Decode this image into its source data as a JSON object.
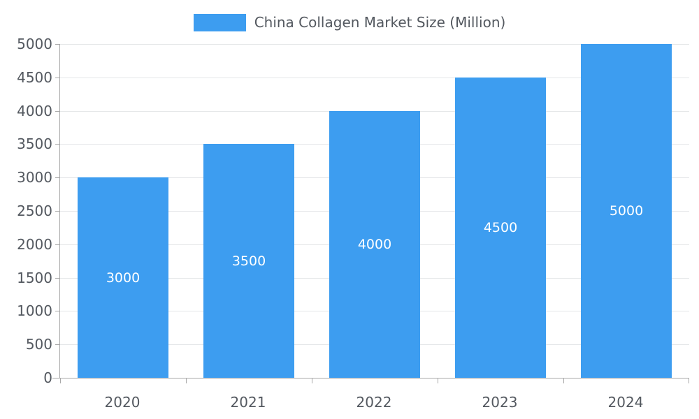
{
  "chart_data": {
    "type": "bar",
    "title": "China Collagen Market Size (Million)",
    "categories": [
      "2020",
      "2021",
      "2022",
      "2023",
      "2024"
    ],
    "values": [
      3000,
      3500,
      4000,
      4500,
      5000
    ],
    "bar_value_labels": [
      "3000",
      "3500",
      "4000",
      "4500",
      "5000"
    ],
    "xlabel": "",
    "ylabel": "",
    "ylim": [
      0,
      5000
    ],
    "yticks": [
      0,
      500,
      1000,
      1500,
      2000,
      2500,
      3000,
      3500,
      4000,
      4500,
      5000
    ],
    "grid": true,
    "legend_position": "top",
    "colors": {
      "bar": "#3d9df0",
      "bar_label": "#ffffff",
      "axis_text": "#53585f",
      "gridline": "#e4e6e8",
      "axis_line": "#a8a8a8"
    }
  }
}
